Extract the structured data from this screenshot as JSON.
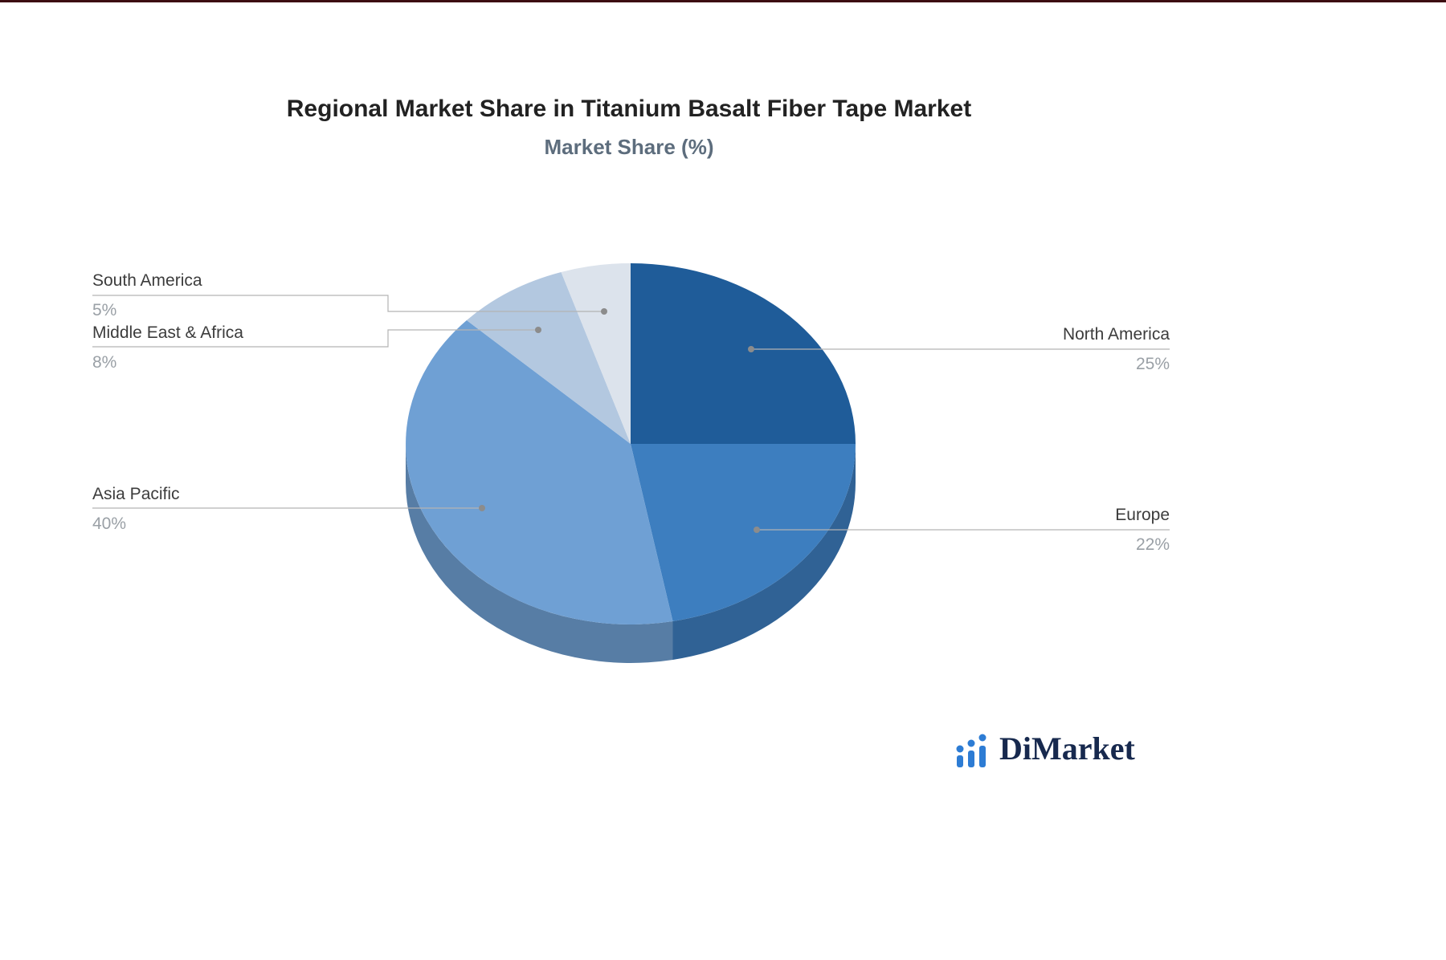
{
  "chart_data": {
    "type": "pie",
    "style": "3d",
    "title": "Regional Market Share in Titanium Basalt Fiber Tape Market",
    "subtitle": "Market Share (%)",
    "unit": "%",
    "direction": "clockwise",
    "start_angle_deg": 0,
    "legend": "none",
    "categories": [
      "North America",
      "Europe",
      "Asia Pacific",
      "Middle East & Africa",
      "South America"
    ],
    "values": [
      25,
      22,
      40,
      8,
      5
    ],
    "labels": [
      "25%",
      "22%",
      "40%",
      "8%",
      "5%"
    ],
    "colors": [
      "#1f5c99",
      "#3d7ebf",
      "#6fa0d4",
      "#b3c8e0",
      "#dce3ec"
    ],
    "leader_line_color": "#b3b3b3",
    "leader_dot_color": "#8c8c8c"
  },
  "logo": {
    "text": "DiMarket",
    "icon": "bar-chart-dots-icon",
    "icon_color": "#2d7cd4",
    "text_color": "#17294e"
  }
}
